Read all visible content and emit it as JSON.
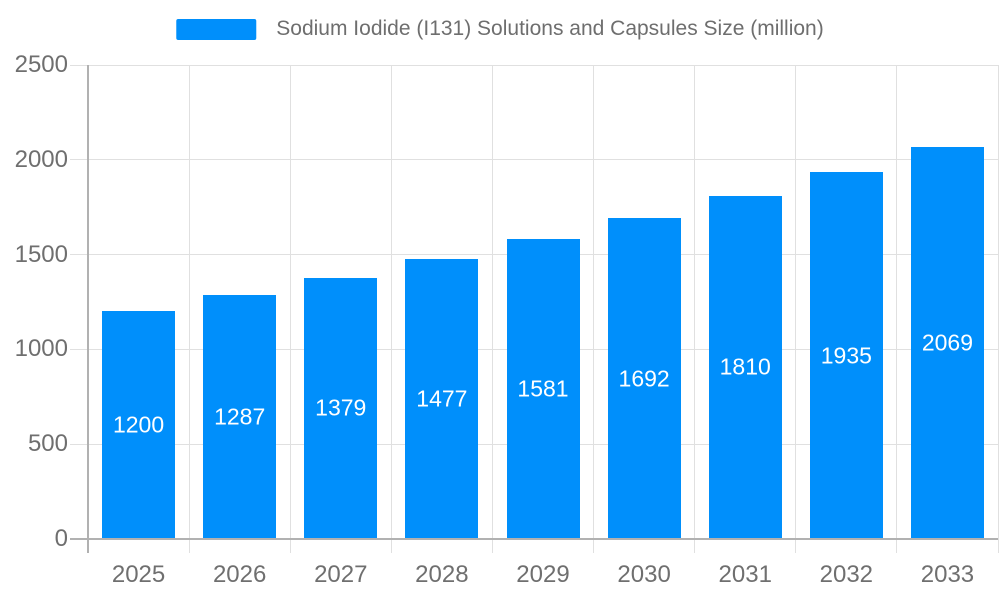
{
  "chart_data": {
    "type": "bar",
    "title": "Sodium Iodide (I131) Solutions and Capsules Size (million)",
    "legend": "Sodium Iodide (I131) Solutions and Capsules Size (million)",
    "legend_position": "top",
    "categories": [
      "2025",
      "2026",
      "2027",
      "2028",
      "2029",
      "2030",
      "2031",
      "2032",
      "2033"
    ],
    "series": [
      {
        "name": "Sodium Iodide (I131) Solutions and Capsules Size (million)",
        "values": [
          1200,
          1287,
          1379,
          1477,
          1581,
          1692,
          1810,
          1935,
          2069
        ]
      }
    ],
    "data_labels_shown": true,
    "xlabel": "",
    "ylabel": "",
    "ylim": [
      0,
      2500
    ],
    "yticks": [
      0,
      500,
      1000,
      1500,
      2000,
      2500
    ],
    "grid": true,
    "colors": {
      "bar": "#008FFB",
      "bar_label": "#ffffff",
      "axis_label": "#6f6f6f",
      "legend_label": "#6e6e6e",
      "grid_line": "#e0e0e0",
      "axis_line": "#b1b1b1",
      "background": "#ffffff"
    }
  }
}
